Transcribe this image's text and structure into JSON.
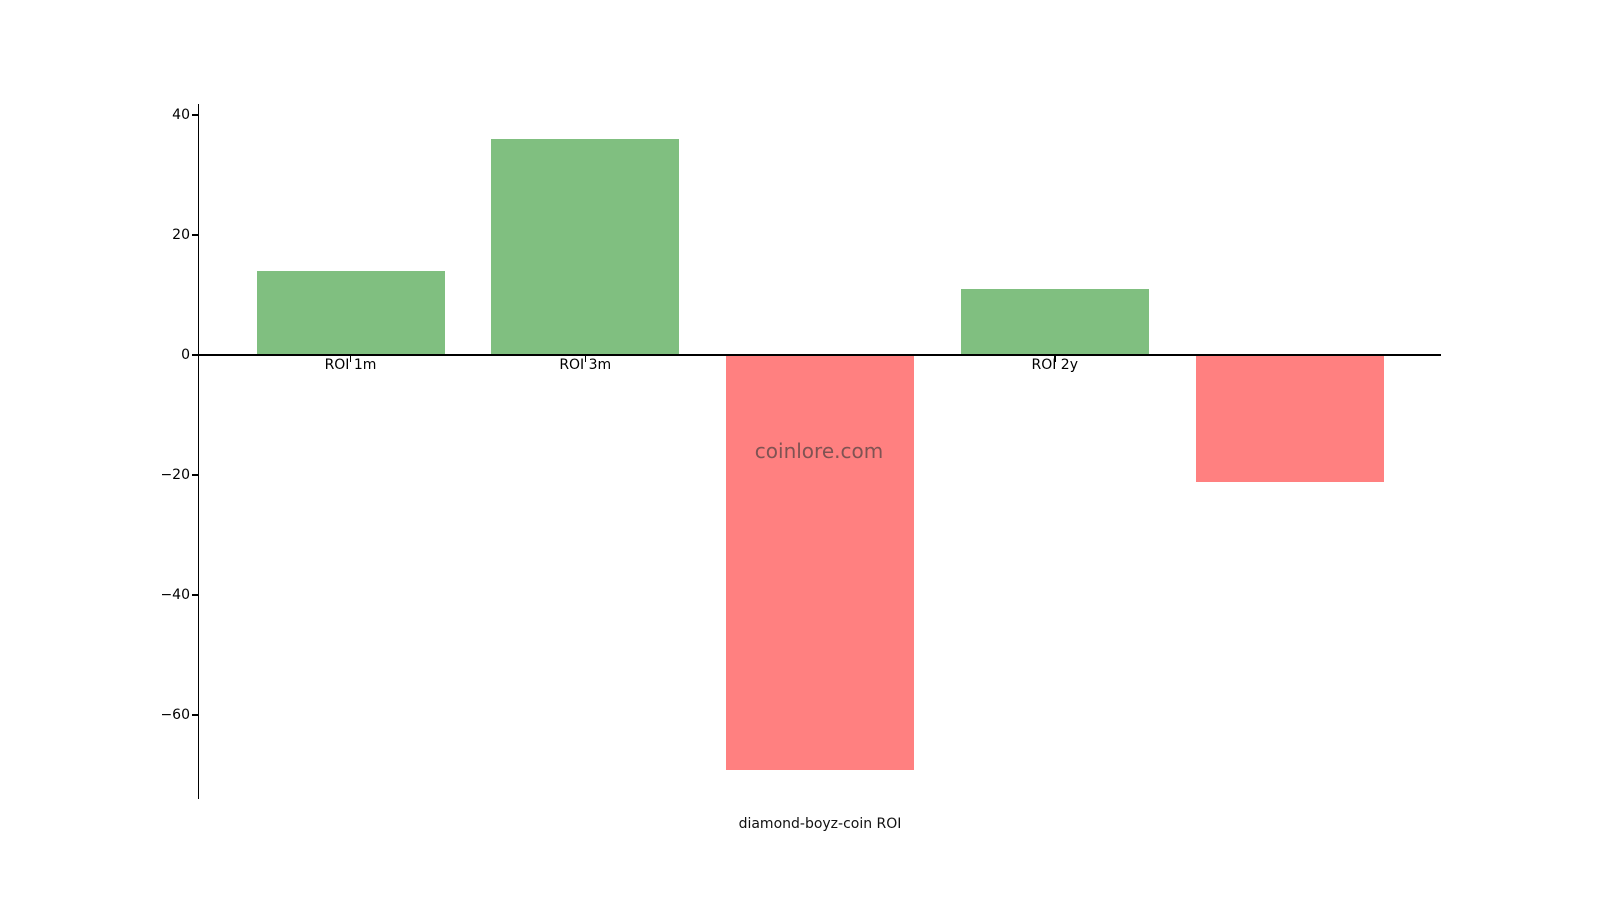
{
  "page": {
    "background": "#ffffff"
  },
  "watermark": {
    "text": "coinlore.com"
  },
  "title": {
    "text": "diamond-boyz-coin ROI"
  },
  "chart_data": {
    "type": "bar",
    "title": "diamond-boyz-coin ROI",
    "categories": [
      "ROI 1m",
      "ROI 3m",
      "",
      "ROI 2y",
      ""
    ],
    "values": [
      14,
      36,
      -69,
      11,
      -21
    ],
    "hidden_label_indices": [
      2,
      4
    ],
    "positive_color": "#80bf80",
    "negative_color": "#ff8080",
    "axis_color": "#000000",
    "yticks": [
      40,
      20,
      0,
      -20,
      -40,
      -60
    ],
    "ytick_labels": [
      "40",
      "20",
      "0",
      "−20",
      "−40",
      "−60"
    ],
    "ylim": [
      -74,
      41.5
    ],
    "xlabel": "",
    "ylabel": "",
    "grid": false,
    "legend": null,
    "x_axis_position": "zero",
    "note": "x tick labels sit just below the y=0 line; negative (red) bars are drawn over them, hiding labels of bars 3 and 5"
  }
}
